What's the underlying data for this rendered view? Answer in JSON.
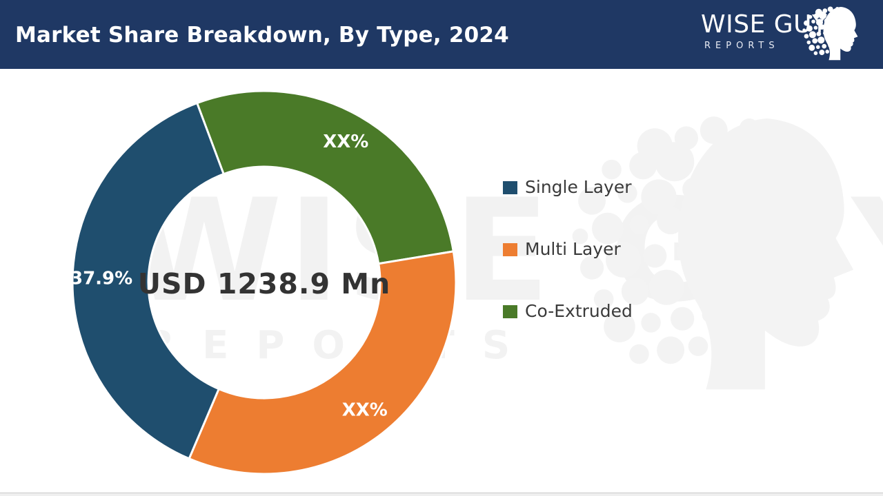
{
  "header": {
    "title": "Market Share Breakdown, By Type, 2024",
    "logo": {
      "wordmark": "WISE GUY",
      "sub_wordmark": "REPORTS"
    }
  },
  "chart_data": {
    "type": "donut",
    "title": "Market Share Breakdown, By Type, 2024",
    "center_label": "USD 1238.9 Mn",
    "start_angle_deg": -20.5,
    "legend_position": "right",
    "slices": [
      {
        "name": "Co-Extruded",
        "pct": 28.1,
        "label": "XX%",
        "color": "#4A7A28"
      },
      {
        "name": "Multi Layer",
        "pct": 34.0,
        "label": "XX%",
        "color": "#ED7D31"
      },
      {
        "name": "Single Layer",
        "pct": 37.9,
        "label": "37.9%",
        "color": "#1F4E6E"
      }
    ]
  },
  "legend": {
    "items": [
      {
        "label": "Single Layer",
        "color": "#1F4E6E"
      },
      {
        "label": "Multi Layer",
        "color": "#ED7D31"
      },
      {
        "label": "Co-Extruded",
        "color": "#4A7A28"
      }
    ]
  },
  "watermark": {
    "line1": "WISE GUY",
    "line2": "REPORTS"
  },
  "colors": {
    "header_bg": "#1F3864",
    "center_text": "#333333",
    "watermark": "#f2f2f2"
  }
}
